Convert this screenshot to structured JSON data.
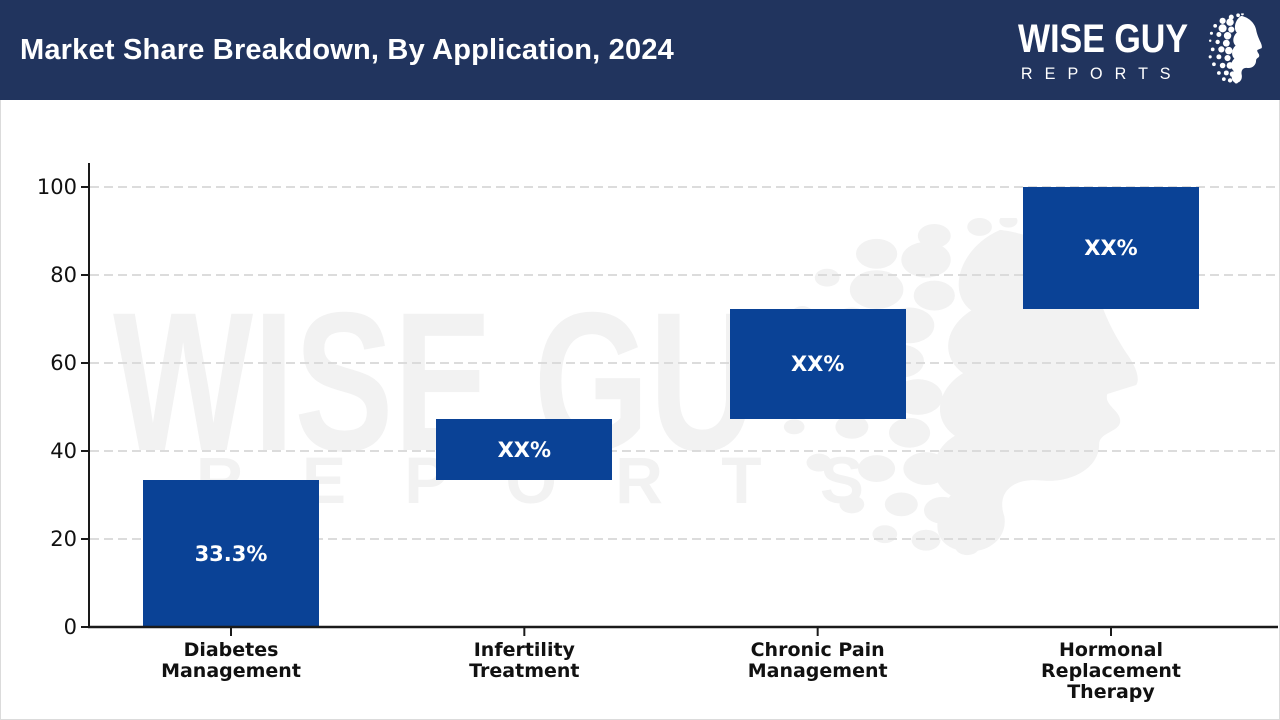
{
  "header": {
    "title": "Market Share Breakdown, By Application, 2024",
    "logo": {
      "brand": "WISE GUY",
      "sub": "R E P O R T S",
      "icon": "dotted-head-profile"
    }
  },
  "watermark": {
    "brand": "WISE GU",
    "sub": "R E P O R T S",
    "icon": "dotted-head-profile"
  },
  "colors": {
    "header_bg": "#21345E",
    "bar": "#0A4296",
    "grid": "#D8D8D8",
    "axis": "#1A1A1A",
    "watermark": "#F2F2F2",
    "bar_label": "#FFFFFF"
  },
  "chart_data": {
    "type": "bar",
    "subtype": "waterfall",
    "title": "Market Share Breakdown, By Application, 2024",
    "categories": [
      "Diabetes\nManagement",
      "Infertility\nTreatment",
      "Chronic Pain\nManagement",
      "Hormonal\nReplacement\nTherapy"
    ],
    "starts": [
      0,
      33.3,
      47.3,
      72.3
    ],
    "values": [
      33.3,
      14,
      25,
      27.7
    ],
    "labels": [
      "33.3%",
      "XX%",
      "XX%",
      "XX%"
    ],
    "xlabel": "",
    "ylabel": "",
    "ylim": [
      0,
      100
    ],
    "yticks": [
      0,
      20,
      40,
      60,
      80,
      100
    ],
    "grid": "horizontal-dashed",
    "legend": "none",
    "bar_color": "#0A4296"
  }
}
